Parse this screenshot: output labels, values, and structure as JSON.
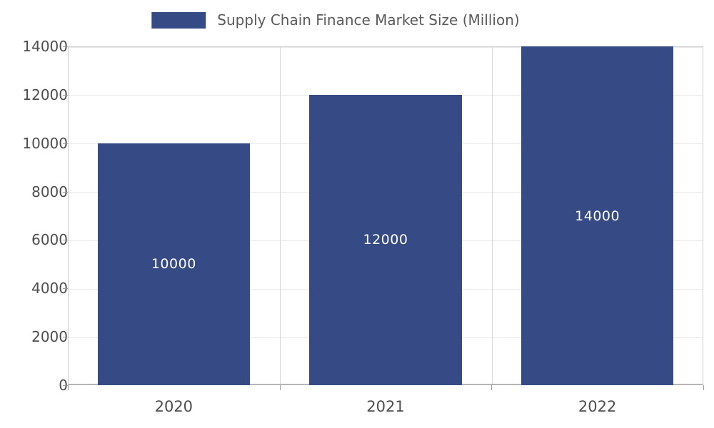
{
  "chart_data": {
    "type": "bar",
    "title": "Supply Chain Finance Market Size (Million)",
    "categories": [
      "2020",
      "2021",
      "2022"
    ],
    "values": [
      10000,
      12000,
      14000
    ],
    "data_labels": [
      "10000",
      "12000",
      "14000"
    ],
    "ylim": [
      0,
      14000
    ],
    "yticks": [
      0,
      2000,
      4000,
      6000,
      8000,
      10000,
      12000,
      14000
    ],
    "xlabel": "",
    "ylabel": "",
    "legend_position": "top",
    "grid": true,
    "bar_color": "#364a85",
    "data_label_color": "#ffffff",
    "axis_text_color": "#4d4d4d"
  },
  "legend": {
    "label": "Supply Chain Finance Market Size (Million)"
  }
}
